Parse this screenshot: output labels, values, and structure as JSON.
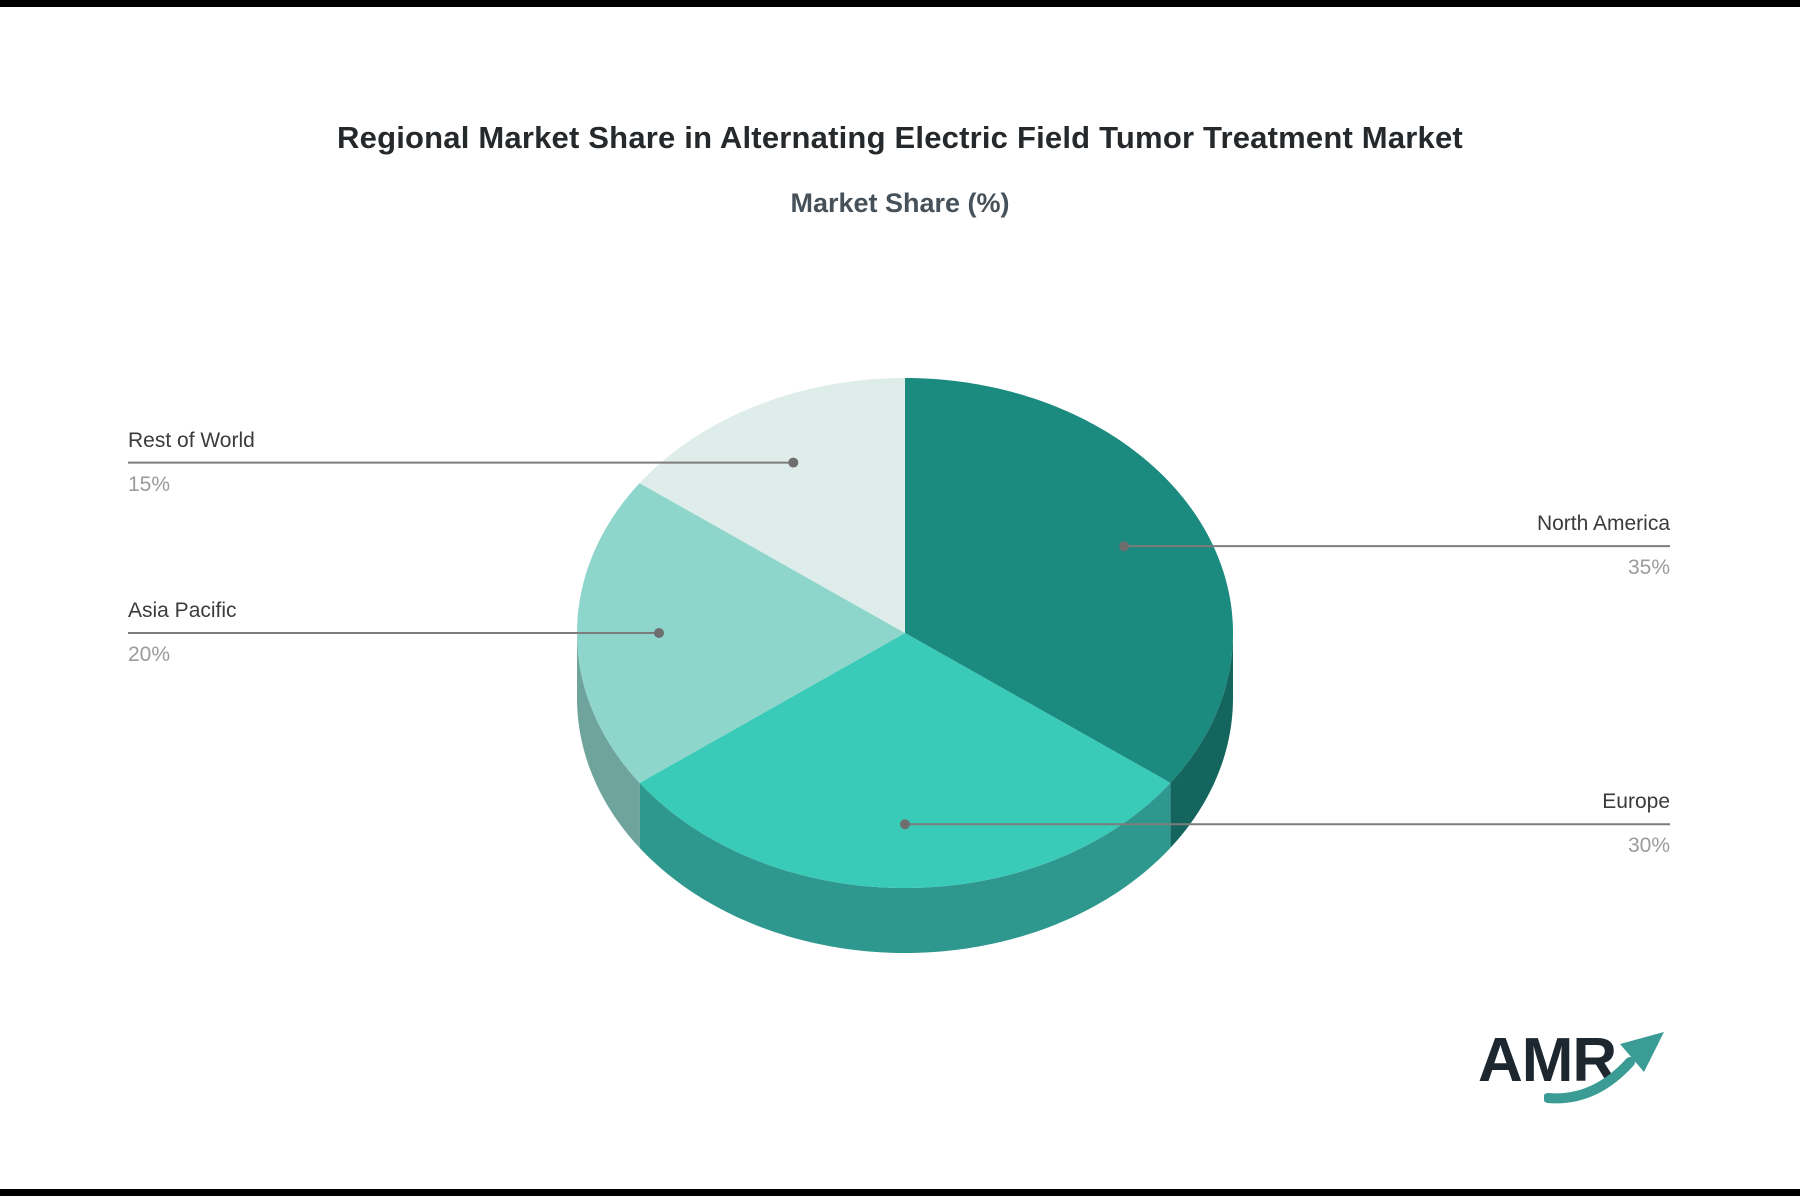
{
  "chart_data": {
    "type": "pie",
    "effect": "3d",
    "title": "Regional Market Share in Alternating Electric Field Tumor Treatment Market",
    "subtitle": "Market Share (%)",
    "unit": "%",
    "direction": "clockwise",
    "start_angle_deg": 90,
    "legend_position": "callout-labels",
    "slices": [
      {
        "label": "North America",
        "value": 35,
        "percent_label": "35%",
        "color": "#1b8a7f",
        "side_color": "#14655e"
      },
      {
        "label": "Europe",
        "value": 30,
        "percent_label": "30%",
        "color": "#39cab8",
        "side_color": "#2e988e"
      },
      {
        "label": "Asia Pacific",
        "value": 20,
        "percent_label": "20%",
        "color": "#8ed6cc",
        "side_color": "#6fa49c"
      },
      {
        "label": "Rest of World",
        "value": 15,
        "percent_label": "15%",
        "color": "#deede9"
      }
    ],
    "callout_line_color": "#7d7d7d",
    "callout_dot_color": "#6e6e6e",
    "label_color": "#3b3b3b",
    "percent_color": "#9b9b9b"
  },
  "logo": {
    "text": "AMR",
    "text_color": "#1d2730",
    "arrow_color": "#3a9c94"
  }
}
